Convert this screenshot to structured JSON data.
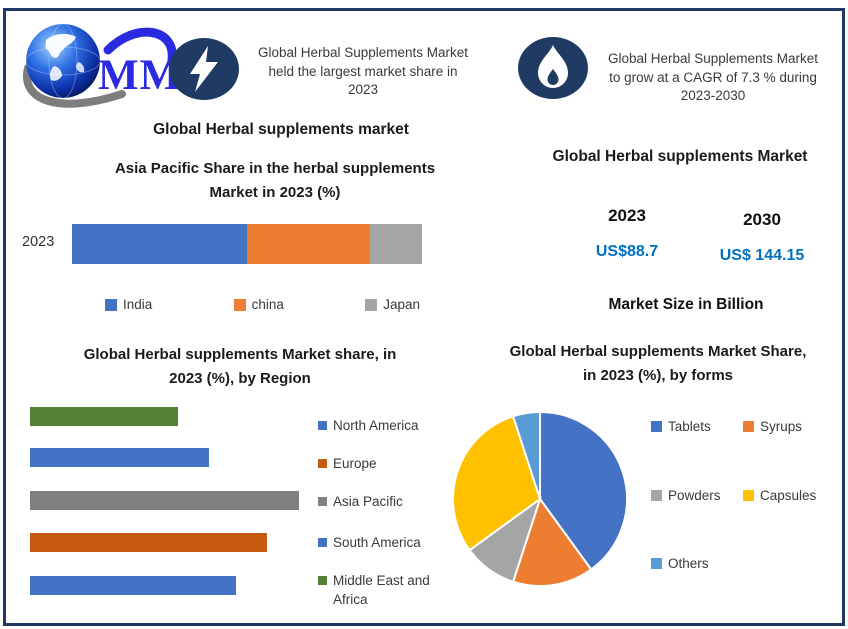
{
  "frame": {
    "border_color": "#1f3864"
  },
  "logo": {
    "text": "MMR",
    "text_color": "#2a2ae0"
  },
  "callouts": [
    {
      "icon": "lightning-icon",
      "lines": [
        "Global Herbal Supplements Market",
        "held the largest market share in",
        "2023"
      ]
    },
    {
      "icon": "flame-icon",
      "lines": [
        "Global Herbal Supplements Market",
        "to grow at a CAGR of 7.3 % during",
        "2023-2030"
      ]
    }
  ],
  "left_panel": {
    "title": "Global Herbal supplements market"
  },
  "right_panel": {
    "title": "Global Herbal supplements Market",
    "columns": [
      {
        "year": "2023",
        "value": "US$88.7"
      },
      {
        "year": "2030",
        "value": "US$ 144.15"
      }
    ],
    "caption": "Market Size in Billion",
    "value_color": "#0070c0"
  },
  "chart_data": [
    {
      "type": "bar",
      "subtype": "stacked_horizontal",
      "title": "Asia Pacific Share in the herbal supplements Market in 2023 (%)",
      "categories": [
        "2023"
      ],
      "unit": "%",
      "legend_position": "bottom",
      "series": [
        {
          "name": "India",
          "value": 50,
          "color": "#4472C4"
        },
        {
          "name": "china",
          "value": 35,
          "color": "#ED7D31"
        },
        {
          "name": "Japan",
          "value": 15,
          "color": "#A5A5A5"
        }
      ]
    },
    {
      "type": "bar",
      "subtype": "horizontal",
      "title": "Global Herbal supplements  Market share, in 2023 (%), by Region",
      "unit": "%",
      "xlim": [
        0,
        33
      ],
      "legend_position": "right",
      "bar_display_order": "reversed",
      "series": [
        {
          "name": "North America",
          "value": 23,
          "color": "#4472C4"
        },
        {
          "name": "Europe",
          "value": 26.5,
          "color": "#C55A11"
        },
        {
          "name": "Asia Pacific",
          "value": 30,
          "color": "#808080"
        },
        {
          "name": "South America",
          "value": 20,
          "color": "#4472C4"
        },
        {
          "name": "Middle East and Africa",
          "value": 16.5,
          "color": "#548235"
        }
      ]
    },
    {
      "type": "pie",
      "title": "Global Herbal supplements  Market Share, in 2023 (%), by forms",
      "unit": "%",
      "start_angle_deg": -90,
      "direction": "clockwise",
      "legend_position": "right",
      "slices": [
        {
          "name": "Tablets",
          "value": 40,
          "color": "#4472C4"
        },
        {
          "name": "Syrups",
          "value": 15,
          "color": "#ED7D31"
        },
        {
          "name": "Powders",
          "value": 10,
          "color": "#A5A5A5"
        },
        {
          "name": "Capsules",
          "value": 30,
          "color": "#FFC000"
        },
        {
          "name": "Others",
          "value": 5,
          "color": "#5B9BD5"
        }
      ]
    }
  ]
}
